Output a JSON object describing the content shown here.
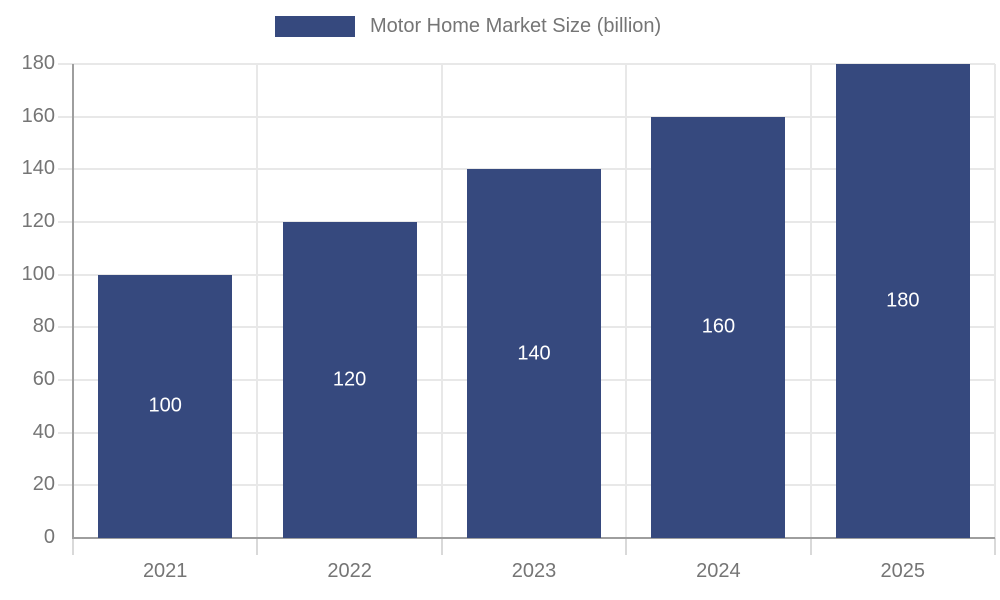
{
  "legend": {
    "label": "Motor Home Market Size (billion)"
  },
  "chart_data": {
    "type": "bar",
    "title": "Motor Home Market Size (billion)",
    "series": [
      {
        "name": "Motor Home Market Size (billion)",
        "values": [
          100,
          120,
          140,
          160,
          180
        ]
      }
    ],
    "categories": [
      "2021",
      "2022",
      "2023",
      "2024",
      "2025"
    ],
    "value_labels": [
      "100",
      "120",
      "140",
      "160",
      "180"
    ],
    "ytick_labels": [
      "0",
      "20",
      "40",
      "60",
      "80",
      "100",
      "120",
      "140",
      "160",
      "180"
    ],
    "ylim": [
      0,
      180
    ],
    "ytick_step": 20,
    "grid": true,
    "legend_position": "top",
    "colors": {
      "bar": "#36497E",
      "bar_value_text": "#ffffff",
      "axis_text": "#757575",
      "axis_line": "#9e9e9e",
      "gridline": "#e8e8e8"
    }
  }
}
